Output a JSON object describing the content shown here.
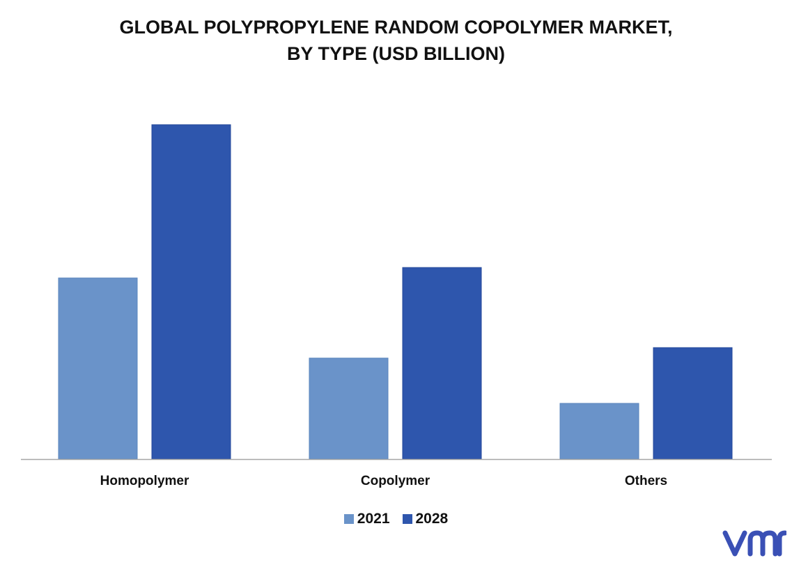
{
  "chart_data": {
    "type": "bar",
    "title_line1": "GLOBAL POLYPROPYLENE RANDOM COPOLYMER MARKET,",
    "title_line2": "BY TYPE (USD BILLION)",
    "xlabel": "",
    "ylabel": "",
    "categories": [
      "Homopolymer",
      "Copolymer",
      "Others"
    ],
    "series": [
      {
        "name": "2021",
        "color": "#6a93c9",
        "values": [
          2.6,
          1.45,
          0.8
        ]
      },
      {
        "name": "2028",
        "color": "#2e56ad",
        "values": [
          4.8,
          2.75,
          1.6
        ]
      }
    ],
    "ylim": [
      0,
      5.0
    ],
    "grid": false,
    "legend_position": "bottom-center"
  },
  "logo": {
    "name": "vmr-logo",
    "color": "#3a50b5"
  }
}
